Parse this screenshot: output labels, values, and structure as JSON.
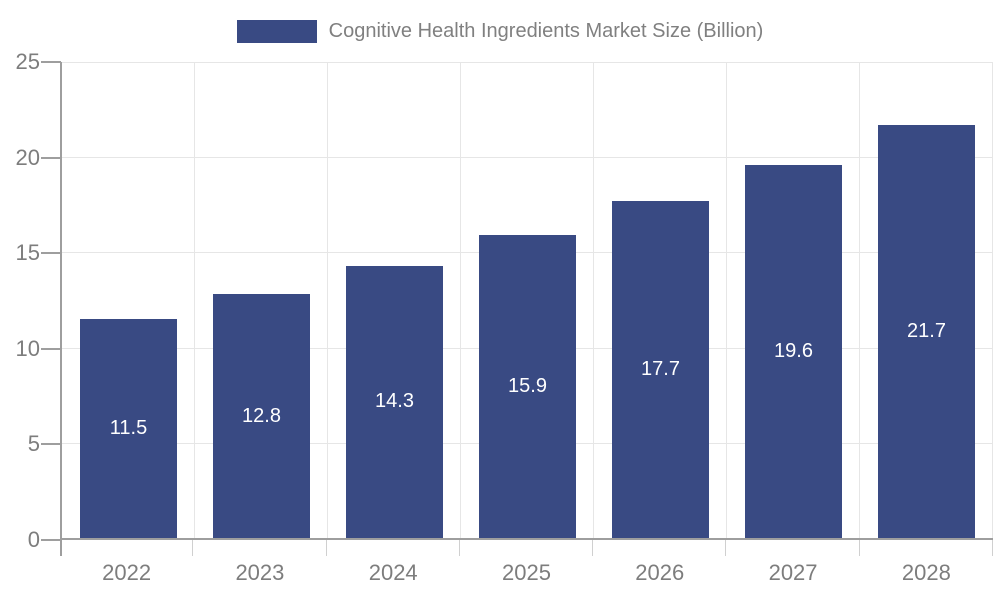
{
  "chart_data": {
    "type": "bar",
    "title": "Cognitive Health Ingredients Market Size (Billion)",
    "categories": [
      "2022",
      "2023",
      "2024",
      "2025",
      "2026",
      "2027",
      "2028"
    ],
    "values": [
      11.5,
      12.8,
      14.3,
      15.9,
      17.7,
      19.6,
      21.7
    ],
    "value_labels": [
      "11.5",
      "12.8",
      "14.3",
      "15.9",
      "17.7",
      "19.6",
      "21.7"
    ],
    "xlabel": "",
    "ylabel": "",
    "ylim": [
      0,
      25
    ],
    "yticks": [
      0,
      5,
      10,
      15,
      20,
      25
    ],
    "grid": "horizontal-and-vertical",
    "legend_position": "top-center",
    "colors": {
      "bar": "#394A83",
      "background": "#ffffff",
      "grid": "#e6e6e6",
      "axis": "#9e9e9e",
      "minor_tick": "#d0d0d0",
      "tick_label": "#7d7d7d",
      "legend_text": "#808080",
      "value_label": "#ffffff"
    }
  }
}
